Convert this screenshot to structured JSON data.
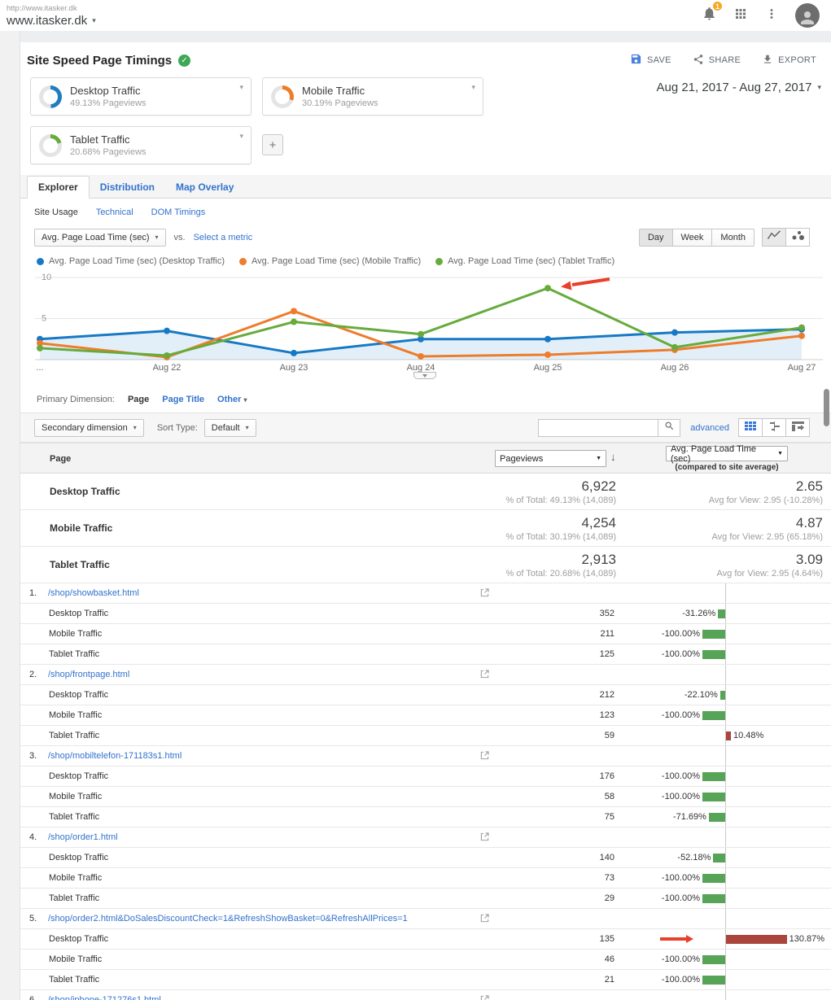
{
  "icons": {
    "caret_down": "▾",
    "select_caret": "▼",
    "sort_desc": "↓",
    "plus": "+",
    "check": "✓"
  },
  "topbar": {
    "url": "http://www.itasker.dk",
    "account": "www.itasker.dk",
    "notification_badge": "1"
  },
  "report": {
    "title": "Site Speed Page Timings",
    "save": "SAVE",
    "share": "SHARE",
    "export": "EXPORT",
    "date_range": "Aug 21, 2017 - Aug 27, 2017"
  },
  "segments": {
    "cards": [
      {
        "name": "Desktop Traffic",
        "detail": "49.13% Pageviews",
        "pct": 49.13,
        "color": "#217dbb"
      },
      {
        "name": "Mobile Traffic",
        "detail": "30.19% Pageviews",
        "pct": 30.19,
        "color": "#ee7c2b"
      },
      {
        "name": "Tablet Traffic",
        "detail": "20.68% Pageviews",
        "pct": 20.68,
        "color": "#66ab3c"
      }
    ]
  },
  "tabs": {
    "explorer": "Explorer",
    "distribution": "Distribution",
    "map_overlay": "Map Overlay"
  },
  "subtabs": {
    "site_usage": "Site Usage",
    "technical": "Technical",
    "dom_timings": "DOM Timings"
  },
  "metric_bar": {
    "metric": "Avg. Page Load Time (sec)",
    "vs": "vs.",
    "select_metric": "Select a metric",
    "day": "Day",
    "week": "Week",
    "month": "Month"
  },
  "chart_data": {
    "type": "line",
    "x": [
      "...",
      "Aug 22",
      "Aug 23",
      "Aug 24",
      "Aug 25",
      "Aug 26",
      "Aug 27"
    ],
    "ylim": [
      0,
      10
    ],
    "yticks": [
      5,
      10
    ],
    "series": [
      {
        "name": "Avg. Page Load Time (sec) (Desktop Traffic)",
        "color": "#1779c4",
        "area": true,
        "values": [
          2.5,
          3.5,
          0.8,
          2.5,
          2.5,
          3.3,
          3.7
        ]
      },
      {
        "name": "Avg. Page Load Time (sec) (Mobile Traffic)",
        "color": "#ee7c2b",
        "values": [
          2.0,
          0.3,
          5.9,
          0.4,
          0.6,
          1.2,
          2.9
        ]
      },
      {
        "name": "Avg. Page Load Time (sec) (Tablet Traffic)",
        "color": "#66ab3c",
        "values": [
          1.4,
          0.5,
          4.6,
          3.1,
          8.7,
          1.5,
          3.9
        ]
      }
    ],
    "annotation": "red arrow pointing at Tablet Traffic peak on Aug 25"
  },
  "dimension_bar": {
    "label": "Primary Dimension:",
    "page": "Page",
    "page_title": "Page Title",
    "other": "Other"
  },
  "toolbar": {
    "secondary_dimension": "Secondary dimension",
    "sort_type_label": "Sort Type:",
    "sort_type_value": "Default",
    "search_value": "",
    "advanced": "advanced"
  },
  "table": {
    "header": {
      "page": "Page",
      "pageviews": "Pageviews",
      "metric": "Avg. Page Load Time (sec)",
      "metric_sub": "(compared to site average)"
    },
    "bar_colors": {
      "positive": "#a9453c",
      "negative": "#57a357"
    },
    "summary": [
      {
        "label": "Desktop Traffic",
        "pageviews": "6,922",
        "pageviews_sub": "% of Total: 49.13% (14,089)",
        "value": "2.65",
        "value_sub": "Avg for View: 2.95 (-10.28%)"
      },
      {
        "label": "Mobile Traffic",
        "pageviews": "4,254",
        "pageviews_sub": "% of Total: 30.19% (14,089)",
        "value": "4.87",
        "value_sub": "Avg for View: 2.95 (65.18%)"
      },
      {
        "label": "Tablet Traffic",
        "pageviews": "2,913",
        "pageviews_sub": "% of Total: 20.68% (14,089)",
        "value": "3.09",
        "value_sub": "Avg for View: 2.95 (4.64%)"
      }
    ],
    "rows": [
      {
        "num": "1.",
        "url": "/shop/showbasket.html",
        "entries": [
          {
            "label": "Desktop Traffic",
            "pageviews": "352",
            "pct": -31.26,
            "pct_label": "-31.26%"
          },
          {
            "label": "Mobile Traffic",
            "pageviews": "211",
            "pct": -100,
            "pct_label": "-100.00%"
          },
          {
            "label": "Tablet Traffic",
            "pageviews": "125",
            "pct": -100,
            "pct_label": "-100.00%"
          }
        ]
      },
      {
        "num": "2.",
        "url": "/shop/frontpage.html",
        "entries": [
          {
            "label": "Desktop Traffic",
            "pageviews": "212",
            "pct": -22.1,
            "pct_label": "-22.10%"
          },
          {
            "label": "Mobile Traffic",
            "pageviews": "123",
            "pct": -100,
            "pct_label": "-100.00%"
          },
          {
            "label": "Tablet Traffic",
            "pageviews": "59",
            "pct": 10.48,
            "pct_label": "10.48%"
          }
        ]
      },
      {
        "num": "3.",
        "url": "/shop/mobiltelefon-171183s1.html",
        "entries": [
          {
            "label": "Desktop Traffic",
            "pageviews": "176",
            "pct": -100,
            "pct_label": "-100.00%"
          },
          {
            "label": "Mobile Traffic",
            "pageviews": "58",
            "pct": -100,
            "pct_label": "-100.00%"
          },
          {
            "label": "Tablet Traffic",
            "pageviews": "75",
            "pct": -71.69,
            "pct_label": "-71.69%"
          }
        ]
      },
      {
        "num": "4.",
        "url": "/shop/order1.html",
        "entries": [
          {
            "label": "Desktop Traffic",
            "pageviews": "140",
            "pct": -52.18,
            "pct_label": "-52.18%"
          },
          {
            "label": "Mobile Traffic",
            "pageviews": "73",
            "pct": -100,
            "pct_label": "-100.00%"
          },
          {
            "label": "Tablet Traffic",
            "pageviews": "29",
            "pct": -100,
            "pct_label": "-100.00%"
          }
        ]
      },
      {
        "num": "5.",
        "url": "/shop/order2.html&DoSalesDiscountCheck=1&RefreshShowBasket=0&RefreshAllPrices=1",
        "entries": [
          {
            "label": "Desktop Traffic",
            "pageviews": "135",
            "pct": 130.87,
            "pct_label": "130.87%",
            "arrow": true
          },
          {
            "label": "Mobile Traffic",
            "pageviews": "46",
            "pct": -100,
            "pct_label": "-100.00%"
          },
          {
            "label": "Tablet Traffic",
            "pageviews": "21",
            "pct": -100,
            "pct_label": "-100.00%"
          }
        ]
      },
      {
        "num": "6.",
        "url": "/shop/iphone-171276s1.html",
        "entries": []
      }
    ]
  }
}
